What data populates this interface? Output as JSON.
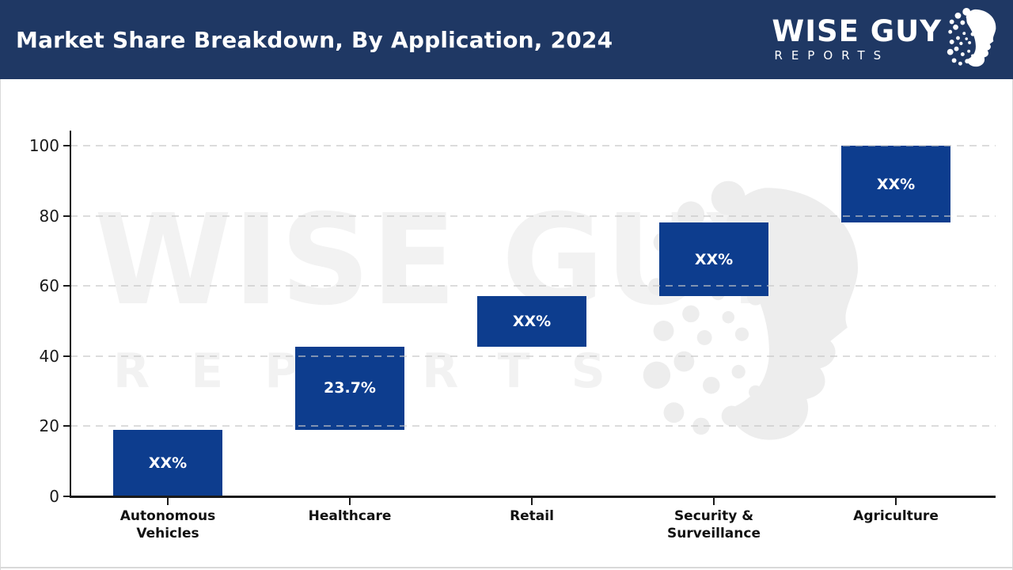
{
  "header": {
    "title": "Market Share Breakdown, By Application, 2024",
    "logo": {
      "wordmark": "WISE GUY",
      "reports": "REPORTS"
    }
  },
  "watermark": {
    "line1": "WISE GUY",
    "line2": "REPORTS"
  },
  "colors": {
    "header_bg": "#1f3864",
    "bar_fill": "#0d3d8e",
    "bar_label_text": "#ffffff",
    "axis_text": "#1a1a1a",
    "gridline": "#d4d4d4",
    "watermark": "#f2f2f2"
  },
  "chart_data": {
    "type": "bar",
    "subtype": "waterfall",
    "title": "Market Share Breakdown, By Application, 2024",
    "xlabel": "",
    "ylabel": "",
    "ylim": [
      0,
      104
    ],
    "yticks": [
      0,
      20,
      40,
      60,
      80,
      100
    ],
    "grid": "horizontal-dashed",
    "legend": "none",
    "categories": [
      "Autonomous Vehicles",
      "Healthcare",
      "Retail",
      "Security & Surveillance",
      "Agriculture"
    ],
    "category_label_lines": [
      [
        "Autonomous",
        "Vehicles"
      ],
      [
        "Healthcare"
      ],
      [
        "Retail"
      ],
      [
        "Security &",
        "Surveillance"
      ],
      [
        "Agriculture"
      ]
    ],
    "segments": [
      {
        "category": "Autonomous Vehicles",
        "start": 0,
        "end": 19,
        "label": "XX%"
      },
      {
        "category": "Healthcare",
        "start": 19,
        "end": 42.7,
        "label": "23.7%",
        "value": 23.7
      },
      {
        "category": "Retail",
        "start": 42.7,
        "end": 57,
        "label": "XX%"
      },
      {
        "category": "Security & Surveillance",
        "start": 57,
        "end": 78,
        "label": "XX%"
      },
      {
        "category": "Agriculture",
        "start": 78,
        "end": 100,
        "label": "XX%"
      }
    ]
  }
}
